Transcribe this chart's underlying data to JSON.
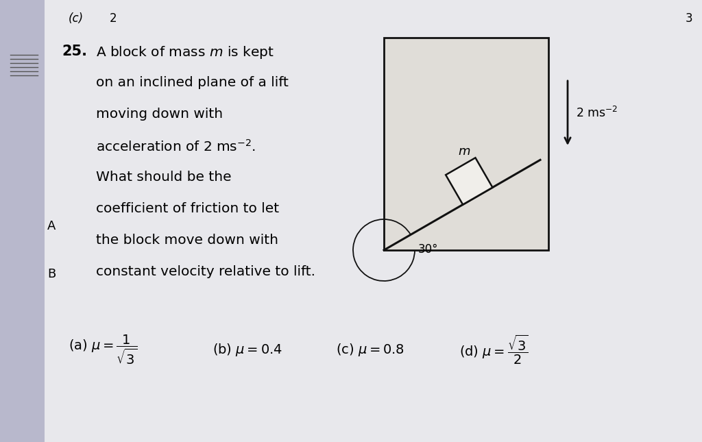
{
  "bg_left_color": "#b8b8cc",
  "bg_main_color": "#d8d8e0",
  "page_color": "#e8e8ec",
  "question_number": "25.",
  "question_text_lines": [
    "A block of mass $m$ is kept",
    "on an inclined plane of a lift",
    "moving down with",
    "acceleration of 2 ms$^{-2}$.",
    "What should be the",
    "coefficient of friction to let",
    "the block move down with",
    "constant velocity relative to lift."
  ],
  "top_left_text": "(c)",
  "top_mid_text": "2",
  "top_right_text": "3",
  "left_A_label": "A",
  "left_B_label": "B",
  "diagram_box_facecolor": "#e0ddd8",
  "diagram_box_edgecolor": "#111111",
  "incline_color": "#111111",
  "block_facecolor": "#f0eeea",
  "block_edgecolor": "#111111",
  "arrow_color": "#111111",
  "angle_label": "30°",
  "mass_label": "$m$",
  "accel_label": "2 ms$^{-2}$",
  "opt_a": "(a) $\\mu = \\dfrac{1}{\\sqrt{3}}$",
  "opt_b": "(b) $\\mu = 0.4$",
  "opt_c": "(c) $\\mu = 0.8$",
  "opt_d": "(d) $\\mu = \\dfrac{\\sqrt{3}}{2}$"
}
